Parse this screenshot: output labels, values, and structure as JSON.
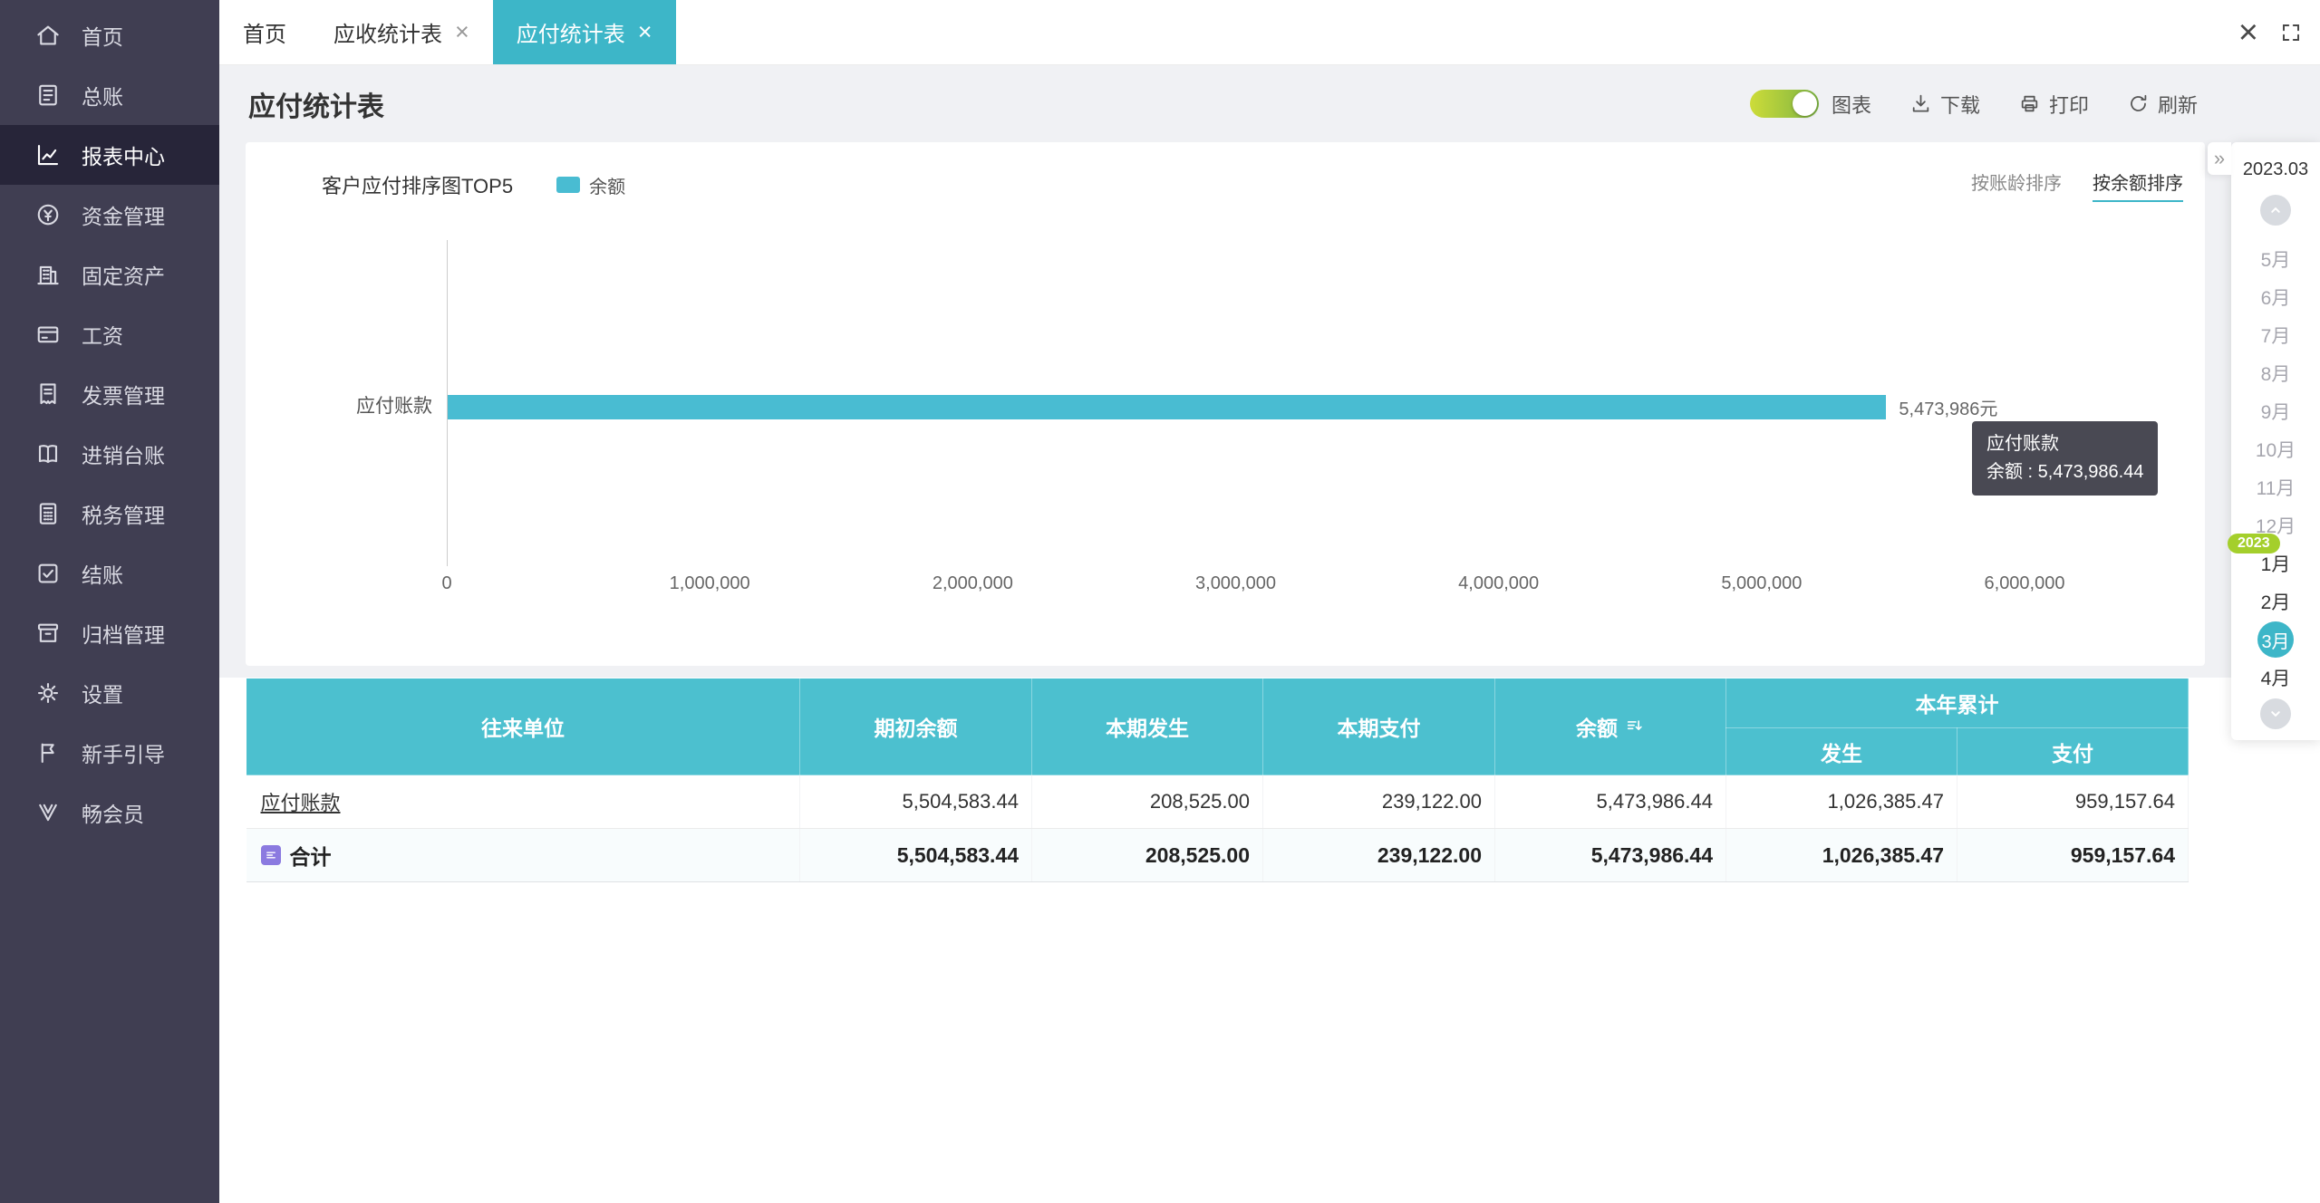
{
  "colors": {
    "teal": "#3db6c8",
    "teal_header": "#4cc0cf",
    "bar": "#49bcd2",
    "sidebar_bg": "#403e52",
    "sidebar_active": "#272539",
    "toggle_from": "#cddc39",
    "toggle_to": "#7cb342",
    "badge_green": "#a4cf2c"
  },
  "sidebar": {
    "items": [
      {
        "label": "首页"
      },
      {
        "label": "总账"
      },
      {
        "label": "报表中心",
        "active": true
      },
      {
        "label": "资金管理"
      },
      {
        "label": "固定资产"
      },
      {
        "label": "工资"
      },
      {
        "label": "发票管理"
      },
      {
        "label": "进销台账"
      },
      {
        "label": "税务管理"
      },
      {
        "label": "结账"
      },
      {
        "label": "归档管理"
      },
      {
        "label": "设置"
      },
      {
        "label": "新手引导"
      },
      {
        "label": "畅会员"
      }
    ]
  },
  "tabs": [
    {
      "label": "首页",
      "closable": false,
      "active": false
    },
    {
      "label": "应收统计表",
      "closable": true,
      "active": false
    },
    {
      "label": "应付统计表",
      "closable": true,
      "active": true
    }
  ],
  "page": {
    "title": "应付统计表"
  },
  "toolbar": {
    "chart_toggle_label": "图表",
    "download_label": "下载",
    "print_label": "打印",
    "refresh_label": "刷新"
  },
  "chart_panel": {
    "title": "客户应付排序图TOP5",
    "legend": "余额",
    "sort_by_age": "按账龄排序",
    "sort_by_balance": "按余额排序",
    "bar_value_label": "5,473,986元",
    "tooltip": {
      "title": "应付账款",
      "line": "余额 : 5,473,986.44"
    }
  },
  "chart_data": {
    "type": "bar",
    "orientation": "horizontal",
    "title": "客户应付排序图TOP5",
    "series_name": "余额",
    "categories": [
      "应付账款"
    ],
    "values": [
      5473986.44
    ],
    "xlim": [
      0,
      6000000
    ],
    "x_ticks": [
      "0",
      "1,000,000",
      "2,000,000",
      "3,000,000",
      "4,000,000",
      "5,000,000",
      "6,000,000"
    ],
    "grid": false,
    "bar_color": "#49bcd2"
  },
  "table": {
    "headers": {
      "unit": "往来单位",
      "opening": "期初余额",
      "current": "本期发生",
      "payment": "本期支付",
      "balance": "余额",
      "ytd": "本年累计",
      "ytd_incurred": "发生",
      "ytd_paid": "支付"
    },
    "rows": [
      {
        "unit": "应付账款",
        "opening": "5,504,583.44",
        "current": "208,525.00",
        "payment": "239,122.00",
        "balance": "5,473,986.44",
        "ytd_incurred": "1,026,385.47",
        "ytd_paid": "959,157.64"
      }
    ],
    "total": {
      "label": "合计",
      "opening": "5,504,583.44",
      "current": "208,525.00",
      "payment": "239,122.00",
      "balance": "5,473,986.44",
      "ytd_incurred": "1,026,385.47",
      "ytd_paid": "959,157.64"
    }
  },
  "month_panel": {
    "header": "2023.03",
    "year_badge": "2023",
    "collapse_glyph": "»",
    "months": [
      {
        "label": "5月",
        "dim": true
      },
      {
        "label": "6月",
        "dim": true
      },
      {
        "label": "7月",
        "dim": true
      },
      {
        "label": "8月",
        "dim": true
      },
      {
        "label": "9月",
        "dim": true
      },
      {
        "label": "10月",
        "dim": true
      },
      {
        "label": "11月",
        "dim": true
      },
      {
        "label": "12月",
        "dim": true
      },
      {
        "label": "1月"
      },
      {
        "label": "2月"
      },
      {
        "label": "3月",
        "selected": true
      },
      {
        "label": "4月"
      }
    ]
  }
}
